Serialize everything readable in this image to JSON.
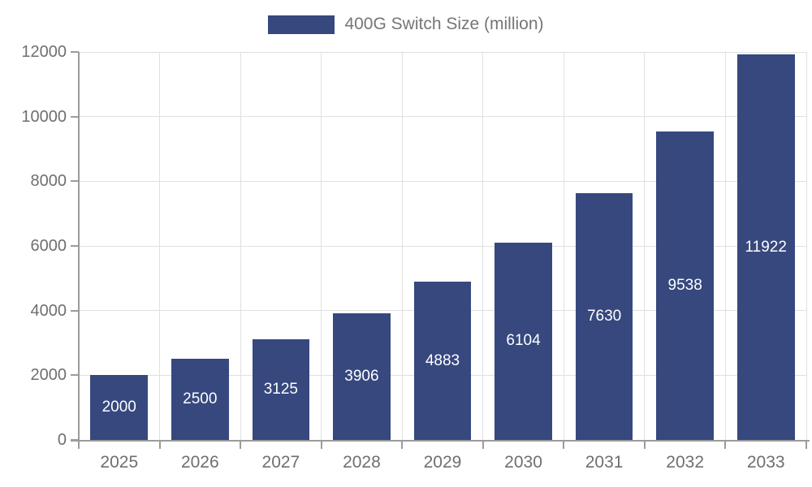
{
  "chart": {
    "legend": {
      "label": "400G Switch Size (million)"
    }
  },
  "chart_data": {
    "type": "bar",
    "title": "",
    "categories": [
      "2025",
      "2026",
      "2027",
      "2028",
      "2029",
      "2030",
      "2031",
      "2032",
      "2033"
    ],
    "series": [
      {
        "name": "400G Switch Size (million)",
        "values": [
          2000,
          2500,
          3125,
          3906,
          4883,
          6104,
          7630,
          9538,
          11922
        ]
      }
    ],
    "values": [
      2000,
      2500,
      3125,
      3906,
      4883,
      6104,
      7630,
      9538,
      11922
    ],
    "xlabel": "",
    "ylabel": "",
    "ylim": [
      0,
      12000
    ],
    "yticks": [
      0,
      2000,
      4000,
      6000,
      8000,
      10000,
      12000
    ],
    "grid": true,
    "legend_position": "top",
    "colors": {
      "bar": "#36487e",
      "value_label": "#ffffff",
      "axis": "#9b9b9b",
      "gridline": "#e0e0e0",
      "tick_label": "#6f6f6f",
      "legend_text": "#757575",
      "background": "#ffffff"
    }
  }
}
